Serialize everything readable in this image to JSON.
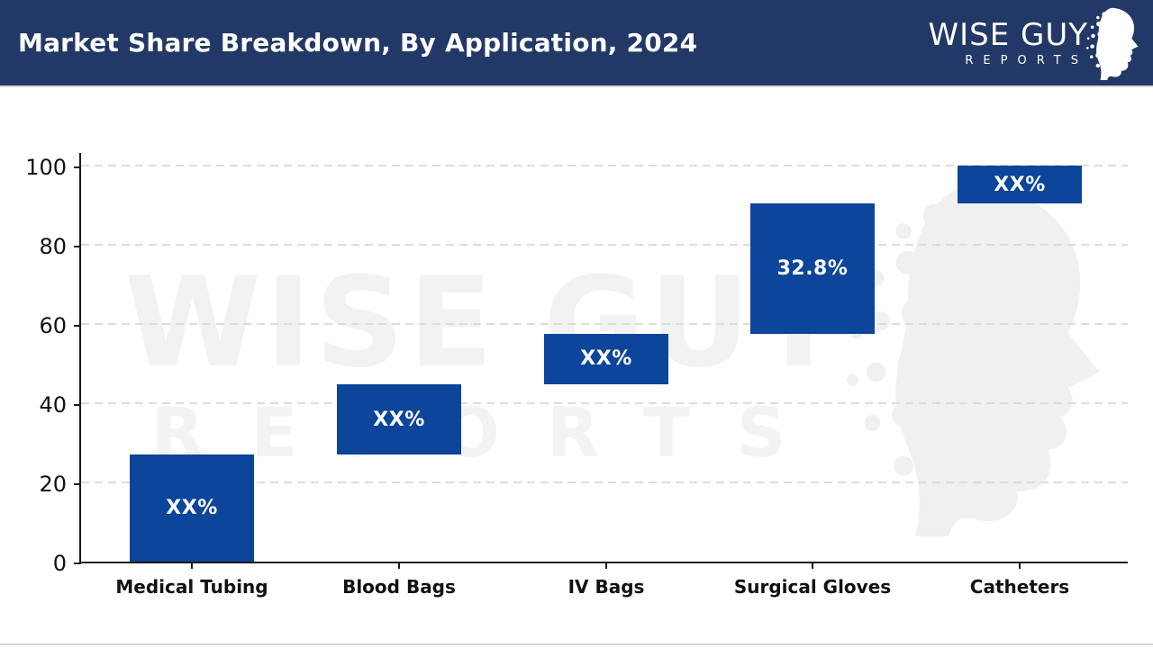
{
  "header": {
    "title": "Market Share Breakdown, By Application, 2024",
    "logo": {
      "primary": "WISE GUY",
      "secondary": "REPORTS"
    }
  },
  "watermark": {
    "primary": "WISE GUY",
    "secondary": "REPORTS"
  },
  "colors": {
    "header_bg": "#223866",
    "bar": "#0c4599",
    "grid": "#dcdcdc",
    "axis": "#1a1a1a",
    "watermark": "#f2f2f2",
    "bar_label_text": "#ffffff"
  },
  "chart_data": {
    "type": "bar",
    "subtype": "waterfall",
    "title": "Market Share Breakdown, By Application, 2024",
    "categories": [
      "Medical Tubing",
      "Blood Bags",
      "IV Bags",
      "Surgical Gloves",
      "Catheters"
    ],
    "bars": [
      {
        "category": "Medical Tubing",
        "start": 0,
        "end": 27.0,
        "value": 27.0,
        "label": "XX%"
      },
      {
        "category": "Blood Bags",
        "start": 27.0,
        "end": 44.8,
        "value": 17.8,
        "label": "XX%"
      },
      {
        "category": "IV Bags",
        "start": 44.8,
        "end": 57.6,
        "value": 12.8,
        "label": "XX%"
      },
      {
        "category": "Surgical Gloves",
        "start": 57.6,
        "end": 90.4,
        "value": 32.8,
        "label": "32.8%"
      },
      {
        "category": "Catheters",
        "start": 90.4,
        "end": 100.0,
        "value": 9.6,
        "label": "XX%"
      }
    ],
    "xlabel": "",
    "ylabel": "",
    "ylim": [
      0,
      100
    ],
    "yticks": [
      0,
      20,
      40,
      60,
      80,
      100
    ],
    "grid": "horizontal-dashed",
    "legend": "none"
  }
}
